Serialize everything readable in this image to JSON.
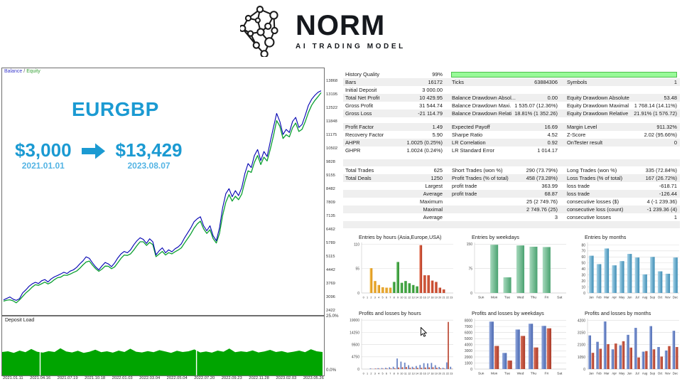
{
  "brand": {
    "name": "NORM",
    "tagline": "AI TRADING MODEL"
  },
  "colors": {
    "accent_blue": "#1b9ad2",
    "date_blue": "#54b4e4",
    "balance_line": "#0000b2",
    "equity_line": "#0a9f2f",
    "deposit_green": "#00a400",
    "history_bar_green": "#98fa98",
    "row_shade": "#efefef"
  },
  "main_chart": {
    "legend_balance": "Balance",
    "legend_divider": "/",
    "legend_equity": "Equity",
    "symbol": "EURGBP",
    "start_amount": "$3,000",
    "start_date": "2021.01.01",
    "end_amount": "$13,429",
    "end_date": "2023.08.07"
  },
  "deposit_panel": {
    "title": "Deposit Load",
    "max_label": "25.0%",
    "min_label": "0.0%"
  },
  "stats": {
    "blocks": [
      {
        "cells": [
          "History Quality",
          "99%",
          "",
          "",
          "",
          ""
        ],
        "bar": true
      },
      {
        "cells": [
          "Bars",
          "16172",
          "Ticks",
          "63884306",
          "Symbols",
          "1"
        ],
        "shade": true
      },
      {
        "cells": [
          "Initial Deposit",
          "3 000.00",
          "",
          "",
          "",
          ""
        ]
      },
      {
        "cells": [
          "Total Net Profit",
          "10 429.95",
          "Balance Drawdown Absol...",
          "0.00",
          "Equity Drawdown Absolute",
          "53.48"
        ],
        "shade": true
      },
      {
        "cells": [
          "Gross Profit",
          "31 544.74",
          "Balance Drawdown Maxi...",
          "1 535.07 (12.36%)",
          "Equity Drawdown Maximal",
          "1 768.14 (14.11%)"
        ]
      },
      {
        "cells": [
          "Gross Loss",
          "-21 114.79",
          "Balance Drawdown Relati...",
          "18.81% (1 352.26)",
          "Equity Drawdown Relative",
          "21.91% (1 576.72)"
        ],
        "shade": true
      },
      {
        "type": "gap",
        "h": 8
      },
      {
        "cells": [
          "Profit Factor",
          "1.49",
          "Expected Payoff",
          "16.69",
          "Margin Level",
          "911.32%"
        ],
        "shade": true
      },
      {
        "cells": [
          "Recovery Factor",
          "5.90",
          "Sharpe Ratio",
          "4.52",
          "Z-Score",
          "2.02 (95.66%)"
        ]
      },
      {
        "cells": [
          "AHPR",
          "1.0025 (0.25%)",
          "LR Correlation",
          "0.92",
          "OnTester result",
          "0"
        ],
        "shade": true
      },
      {
        "cells": [
          "GHPR",
          "1.0024 (0.24%)",
          "LR Standard Error",
          "1 014.17",
          "",
          ""
        ]
      },
      {
        "type": "gap",
        "h": 7
      },
      {
        "type": "band",
        "h": 10
      },
      {
        "cells": [
          "Total Trades",
          "625",
          "Short Trades (won %)",
          "290 (73.79%)",
          "Long Trades (won %)",
          "335 (72.84%)"
        ]
      },
      {
        "cells": [
          "Total Deals",
          "1250",
          "Profit Trades (% of total)",
          "458 (73.28%)",
          "Loss Trades (% of total)",
          "167 (26.72%)"
        ],
        "shade": true
      },
      {
        "cells": [
          "",
          "Largest",
          "profit trade",
          "363.99",
          "loss trade",
          "-618.71"
        ]
      },
      {
        "cells": [
          "",
          "Average",
          "profit trade",
          "68.87",
          "loss trade",
          "-126.44"
        ],
        "shade": true
      },
      {
        "cells": [
          "",
          "Maximum",
          "",
          "25 (2 749.76)",
          "consecutive losses ($)",
          "4 (-1 239.36)"
        ]
      },
      {
        "cells": [
          "",
          "Maximal",
          "",
          "2 749.76 (25)",
          "consecutive loss (count)",
          "-1 239.36 (4)"
        ],
        "shade": true
      },
      {
        "cells": [
          "",
          "Average",
          "",
          "3",
          "consecutive losses",
          "1"
        ]
      },
      {
        "type": "band",
        "h": 10
      }
    ]
  },
  "chart_data": [
    {
      "id": "balance-equity",
      "type": "line",
      "title": "Balance / Equity",
      "y_range": [
        2250,
        14550
      ],
      "y_ticks": [
        13868,
        13195,
        12522,
        11848,
        11175,
        10502,
        9828,
        9155,
        8482,
        7809,
        7135,
        6462,
        5789,
        5115,
        4442,
        3769,
        3096,
        2422
      ],
      "x_labels": [
        "2021.01.11",
        "2021.04.16",
        "2021.07.19",
        "2021.10.18",
        "2022.01.03",
        "2022.03.04",
        "2022.05.04",
        "2022.07.20",
        "2022.09.23",
        "2022.11.28",
        "2023.02.03",
        "2023.05.26"
      ],
      "series": [
        {
          "name": "Balance",
          "color": "#0000b2",
          "values": [
            3000,
            3080,
            3150,
            3040,
            2980,
            3060,
            3350,
            3500,
            3680,
            3800,
            3880,
            3820,
            3960,
            4020,
            3900,
            4050,
            4150,
            4220,
            4300,
            4380,
            4320,
            4440,
            4500,
            4620,
            4800,
            4950,
            5150,
            5080,
            4850,
            4650,
            4500,
            4700,
            4870,
            4800,
            4660,
            4850,
            5100,
            5300,
            5420,
            5350,
            5500,
            5750,
            5950,
            6100,
            6020,
            5820,
            6050,
            5900,
            5250,
            5450,
            5600,
            5350,
            5500,
            5400,
            5550,
            5650,
            5800,
            6100,
            6350,
            6600,
            6900,
            7050,
            7150,
            6700,
            6450,
            6700,
            6200,
            5950,
            6600,
            7600,
            8300,
            8550,
            8150,
            8450,
            8200,
            8600,
            9300,
            9800,
            9600,
            10200,
            10500,
            9950,
            10400,
            10150,
            10900,
            11600,
            12300,
            11900,
            11250,
            11500,
            11350,
            11900,
            12100,
            11600,
            11750,
            12200,
            12700,
            13000,
            13200,
            13350,
            13430
          ]
        },
        {
          "name": "Equity",
          "color": "#0a9f2f",
          "offsets": [
            60,
            90,
            140,
            80,
            120,
            60,
            180,
            150,
            200,
            160,
            120,
            90,
            150,
            130,
            100,
            170,
            140,
            110,
            160,
            140,
            90,
            150,
            130,
            180,
            220,
            200,
            260,
            140,
            110,
            90,
            70,
            160,
            180,
            120,
            100,
            200,
            240,
            220,
            180,
            130,
            200,
            260,
            240,
            200,
            120,
            100,
            180,
            140,
            90,
            160,
            180,
            110,
            140,
            100,
            150,
            160,
            200,
            260,
            280,
            300,
            320,
            260,
            220,
            150,
            130,
            200,
            140,
            110,
            280,
            380,
            420,
            300,
            220,
            280,
            200,
            320,
            400,
            360,
            240,
            340,
            300,
            200,
            280,
            220,
            380,
            420,
            360,
            240,
            200,
            260,
            220,
            320,
            280,
            200,
            240,
            320,
            360,
            300,
            260,
            220,
            100
          ]
        }
      ]
    },
    {
      "id": "deposit-load",
      "type": "area",
      "title": "Deposit Load",
      "color": "#00a400",
      "y_max": 25,
      "gap_positions": [
        0.117,
        0.605
      ],
      "values": [
        10.2,
        10.5,
        9.8,
        10.8,
        10.1,
        11.5,
        10.3,
        9.9,
        10.6,
        10.2,
        11.8,
        10.4,
        10.0,
        10.7,
        9.8,
        10.3,
        11.2,
        10.1,
        10.5,
        9.9,
        10.8,
        10.2,
        11.6,
        10.3,
        10.0,
        10.6,
        10.1,
        11.0,
        10.4,
        9.8,
        10.7,
        10.2,
        10.5,
        11.3,
        10.0,
        10.4,
        9.9,
        10.8,
        10.3,
        11.7,
        10.1,
        10.5,
        10.2,
        10.9,
        10.0,
        10.4,
        11.1,
        10.2,
        10.6,
        9.9,
        10.3,
        10.8,
        10.1,
        11.4,
        10.5,
        10.2
      ]
    },
    {
      "id": "entries-by-hours",
      "type": "bar",
      "title": "Entries by hours (Asia,Europe,USA)",
      "categories": [
        "0",
        "1",
        "2",
        "3",
        "4",
        "5",
        "6",
        "7",
        "8",
        "9",
        "10",
        "11",
        "12",
        "13",
        "14",
        "15",
        "16",
        "17",
        "18",
        "19",
        "20",
        "21",
        "22",
        "23"
      ],
      "values": [
        0,
        0,
        56,
        27,
        18,
        13,
        12,
        12,
        25,
        70,
        23,
        27,
        22,
        18,
        15,
        108,
        40,
        40,
        28,
        25,
        12,
        8,
        0,
        0
      ],
      "color_ranges": [
        [
          0,
          7,
          "#f6c050",
          "#d88d10"
        ],
        [
          8,
          14,
          "#63c063",
          "#258525"
        ],
        [
          15,
          23,
          "#e8704e",
          "#b03520"
        ]
      ],
      "y_ticks": [
        0,
        55,
        110
      ],
      "y_max": 114
    },
    {
      "id": "entries-by-weekdays",
      "type": "bar",
      "title": "Entries by weekdays",
      "categories": [
        "Sun",
        "Mon",
        "Tue",
        "Wed",
        "Thu",
        "Fri",
        "Sat"
      ],
      "values": [
        0,
        148,
        48,
        146,
        142,
        141,
        0
      ],
      "gradient": [
        "#a7d9bd",
        "#4aa270"
      ],
      "y_ticks": [
        0,
        75,
        150
      ],
      "y_max": 155
    },
    {
      "id": "entries-by-months",
      "type": "bar",
      "title": "Entries by months",
      "categories": [
        "Jan",
        "Feb",
        "Mar",
        "Apr",
        "May",
        "Jun",
        "Jul",
        "Aug",
        "Sep",
        "Oct",
        "Nov",
        "Dec"
      ],
      "values": [
        62,
        48,
        74,
        46,
        53,
        65,
        59,
        31,
        60,
        36,
        32,
        59
      ],
      "gradient": [
        "#a6d3e8",
        "#3d8cb4"
      ],
      "y_ticks": [
        0,
        10,
        20,
        30,
        40,
        50,
        60,
        70,
        80
      ],
      "y_max": 84
    },
    {
      "id": "pl-by-hours",
      "type": "bar-pair",
      "title": "Profits and losses by hours",
      "categories": [
        "0",
        "1",
        "2",
        "3",
        "4",
        "5",
        "6",
        "7",
        "8",
        "9",
        "10",
        "11",
        "12",
        "13",
        "14",
        "15",
        "16",
        "17",
        "18",
        "19",
        "20",
        "21",
        "22",
        "23"
      ],
      "series": [
        {
          "name": "profit",
          "gradient": [
            "#8fa6dc",
            "#4a67b0"
          ],
          "values": [
            0,
            0,
            250,
            150,
            350,
            400,
            500,
            700,
            900,
            4100,
            2900,
            2500,
            1500,
            900,
            1200,
            1600,
            2300,
            2200,
            2400,
            1500,
            800,
            500,
            2600,
            900
          ]
        },
        {
          "name": "loss",
          "gradient": [
            "#d8705a",
            "#aa3a28"
          ],
          "values": [
            0,
            0,
            100,
            200,
            150,
            150,
            200,
            250,
            300,
            600,
            700,
            800,
            500,
            400,
            450,
            500,
            600,
            650,
            700,
            500,
            300,
            200,
            18300,
            100
          ]
        }
      ],
      "y_ticks": [
        0,
        4750,
        9500,
        14250,
        19000
      ],
      "y_max": 19600
    },
    {
      "id": "pl-by-weekdays",
      "type": "bar-pair",
      "title": "Profits and losses by weekdays",
      "categories": [
        "Sun",
        "Mon",
        "Tue",
        "Wed",
        "Thu",
        "Fri",
        "Sat"
      ],
      "series": [
        {
          "name": "profit",
          "gradient": [
            "#8fa6dc",
            "#4a67b0"
          ],
          "values": [
            0,
            7800,
            2650,
            6500,
            7450,
            7100,
            0
          ]
        },
        {
          "name": "loss",
          "gradient": [
            "#d8705a",
            "#aa3a28"
          ],
          "values": [
            0,
            3800,
            1400,
            5450,
            3550,
            6700,
            0
          ]
        }
      ],
      "y_ticks": [
        0,
        1000,
        2000,
        3000,
        4000,
        5000,
        6000,
        7000,
        8000
      ],
      "y_max": 8300
    },
    {
      "id": "pl-by-months",
      "type": "bar-pair",
      "title": "Profits and losses by months",
      "categories": [
        "Jan",
        "Feb",
        "Mar",
        "Apr",
        "May",
        "Jun",
        "Jul",
        "Aug",
        "Sep",
        "Oct",
        "Nov",
        "Dec"
      ],
      "series": [
        {
          "name": "profit",
          "gradient": [
            "#8fa6dc",
            "#4a67b0"
          ],
          "values": [
            2900,
            2350,
            4100,
            1700,
            2050,
            2950,
            3550,
            1500,
            3700,
            1900,
            1600,
            3300
          ]
        },
        {
          "name": "loss",
          "gradient": [
            "#d8705a",
            "#aa3a28"
          ],
          "values": [
            1400,
            1750,
            2150,
            2200,
            2400,
            1850,
            1000,
            1550,
            1700,
            1080,
            1980,
            1900
          ]
        }
      ],
      "y_ticks": [
        0,
        1050,
        2100,
        3150,
        4200
      ],
      "y_max": 4350
    }
  ]
}
